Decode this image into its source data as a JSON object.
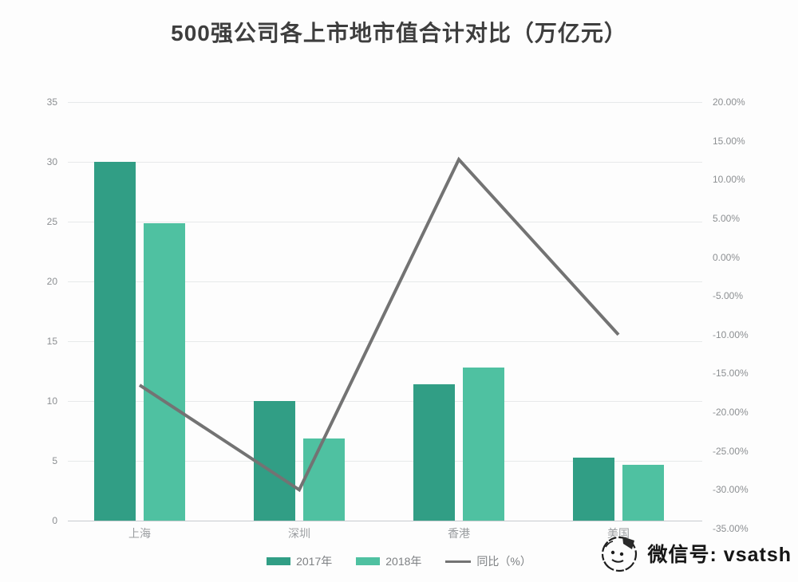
{
  "chart_data": {
    "type": "bar",
    "subtype": "bar-line-combo",
    "title": "500强公司各上市地市值合计对比（万亿元）",
    "categories": [
      "上海",
      "深圳",
      "香港",
      "美国"
    ],
    "series": [
      {
        "name": "2017年",
        "type": "bar",
        "axis": "left",
        "color": "#319e85",
        "values": [
          30,
          10,
          11.4,
          5.3
        ]
      },
      {
        "name": "2018年",
        "type": "bar",
        "axis": "left",
        "color": "#4fc1a1",
        "values": [
          24.9,
          6.9,
          12.8,
          4.7
        ]
      },
      {
        "name": "同比（%）",
        "type": "line",
        "axis": "right",
        "color": "#737373",
        "values": [
          -16.5,
          -30,
          12.6,
          -10
        ]
      }
    ],
    "left_axis": {
      "ticks": [
        35,
        30,
        25,
        20,
        15,
        10,
        5,
        0
      ],
      "min": 0,
      "max": 35
    },
    "right_axis": {
      "tick_labels": [
        "20.00%",
        "15.00%",
        "10.00%",
        "5.00%",
        "0.00%",
        "-5.00%",
        "-10.00%",
        "-15.00%",
        "-20.00%",
        "-25.00%",
        "-30.00%",
        "-35.00%"
      ],
      "min": -35,
      "max": 20
    },
    "grid": true,
    "legend_position": "bottom"
  },
  "colors": {
    "bar_2017": "#319e85",
    "bar_2018": "#4fc1a1",
    "line": "#737373",
    "grid": "#e7e9ea",
    "axis_text": "#8c8f92",
    "title_text": "#3e3e3e"
  },
  "watermark": {
    "logo_icon": "panda-sketch-logo",
    "text": "微信号: vsatsh"
  }
}
